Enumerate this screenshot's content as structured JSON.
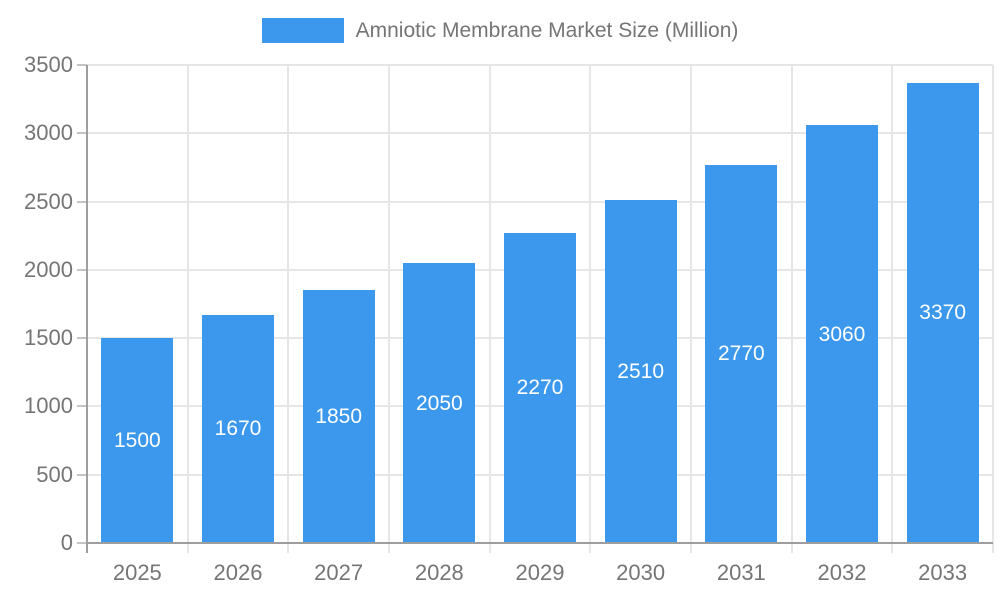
{
  "chart_data": {
    "type": "bar",
    "title": "Amniotic Membrane Market Size (Million)",
    "legend": {
      "label": "Amniotic Membrane Market Size (Million)",
      "position": "top-center"
    },
    "categories": [
      "2025",
      "2026",
      "2027",
      "2028",
      "2029",
      "2030",
      "2031",
      "2032",
      "2033"
    ],
    "values": [
      1500,
      1670,
      1850,
      2050,
      2270,
      2510,
      2770,
      3060,
      3370
    ],
    "xlabel": "",
    "ylabel": "",
    "ylim": [
      0,
      3500
    ],
    "ytick_step": 500,
    "grid": true,
    "bar_labels_visible": true,
    "colors": {
      "bar": "#3B98EC",
      "bar_label_text": "#ffffff",
      "axis_line": "#9E9E9E",
      "gridline": "#E6E6E6",
      "axis_text": "#757575",
      "background": "#ffffff"
    }
  }
}
